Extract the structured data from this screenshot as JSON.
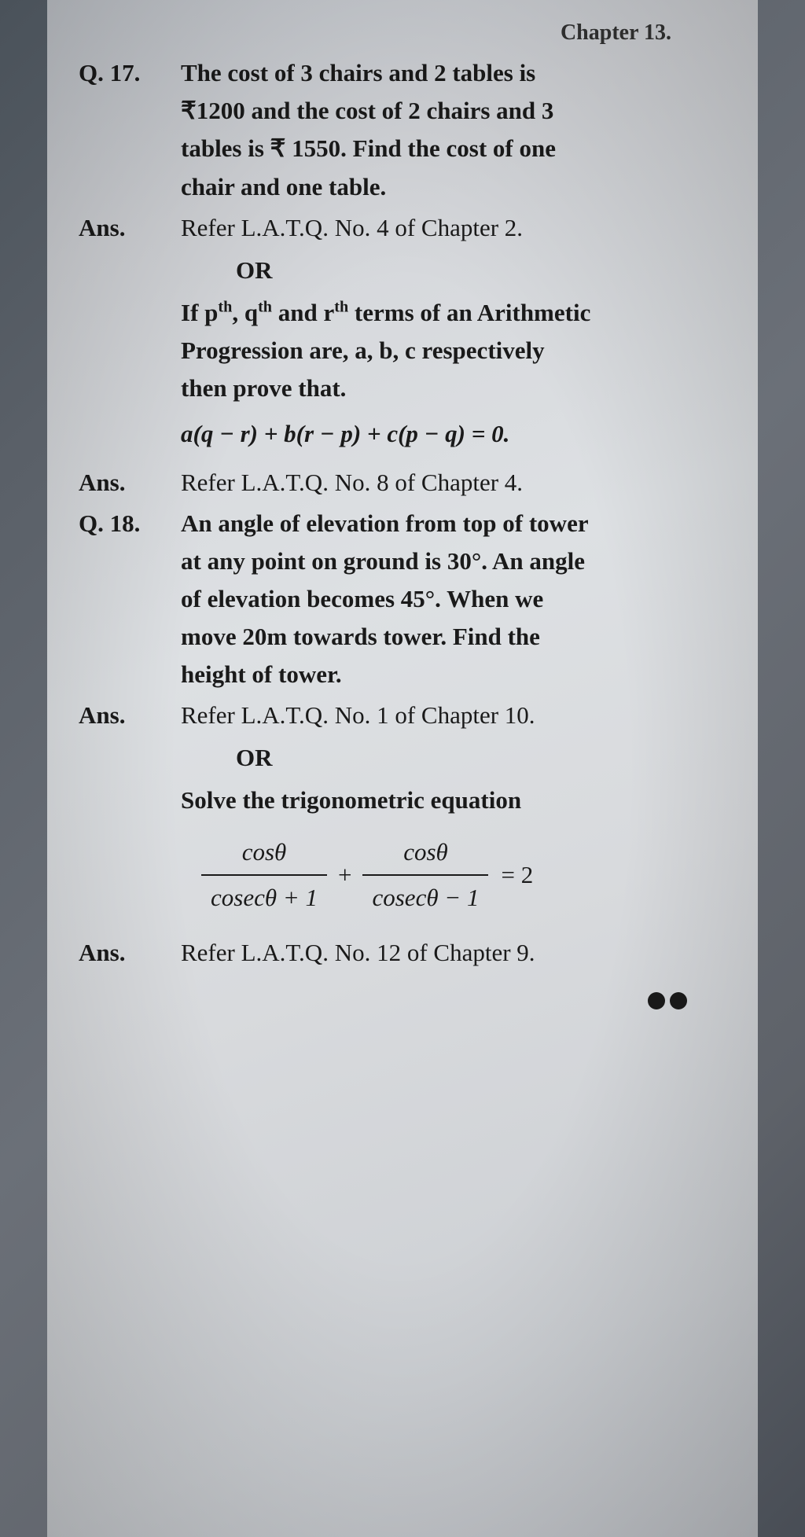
{
  "header_fragment": "Chapter 13.",
  "q17": {
    "label": "Q. 17.",
    "text_lines": [
      "The cost of 3 chairs and 2 tables is",
      "₹1200 and the cost of 2 chairs and 3",
      "tables is ₹ 1550. Find the cost of one",
      "chair and one table."
    ],
    "ans_label": "Ans.",
    "ans_text": "Refer L.A.T.Q. No. 4 of Chapter 2.",
    "or": "OR",
    "or_lines": [
      "If p",
      ", q",
      " and r",
      " terms of an Arithmetic",
      "Progression are, a, b, c respectively",
      "then prove that."
    ],
    "th": "th",
    "equation": "a(q − r) + b(r − p) + c(p − q) = 0.",
    "or_ans_label": "Ans.",
    "or_ans_text": "Refer L.A.T.Q. No. 8 of Chapter 4."
  },
  "q18": {
    "label": "Q. 18.",
    "text_lines": [
      "An angle of elevation from top of tower",
      "at any point on ground is 30°. An angle",
      "of elevation becomes 45°. When we",
      "move 20m towards tower. Find the",
      "height of tower."
    ],
    "ans_label": "Ans.",
    "ans_text": "Refer L.A.T.Q. No. 1 of Chapter 10.",
    "or": "OR",
    "or_line": "Solve the trigonometric equation",
    "frac1_num": "cosθ",
    "frac1_den": "cosecθ + 1",
    "plus": "+",
    "frac2_num": "cosθ",
    "frac2_den": "cosecθ − 1",
    "equals": "= 2",
    "or_ans_label": "Ans.",
    "or_ans_text": "Refer L.A.T.Q. No. 12 of Chapter 9."
  }
}
